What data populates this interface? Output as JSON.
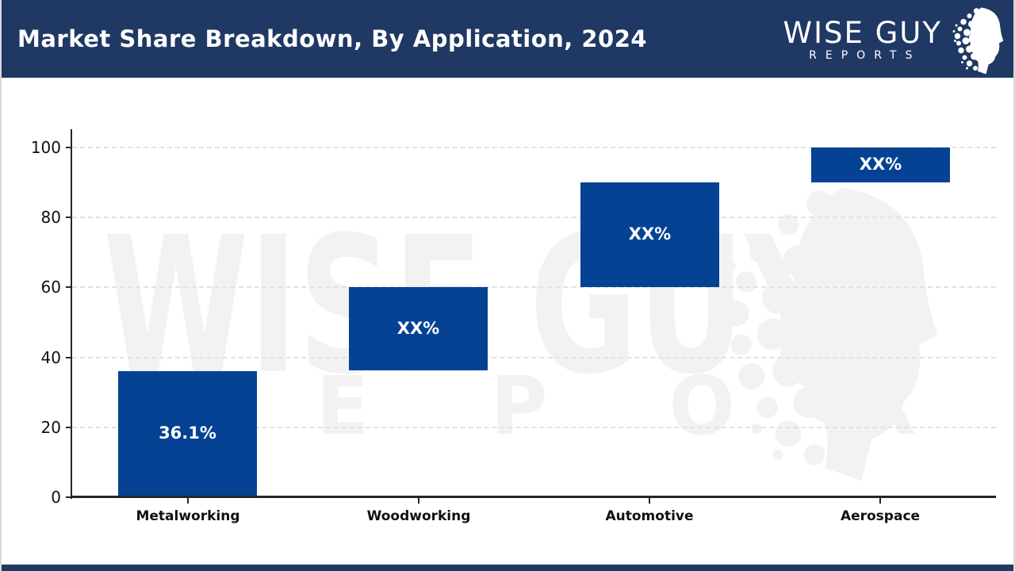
{
  "header": {
    "title": "Market Share Breakdown, By Application, 2024",
    "logo": {
      "line1": "WISE GUY",
      "line2": "REPORTS"
    }
  },
  "watermark": {
    "line1": "WISE GUY",
    "line2": "R E P O R T S"
  },
  "chart_data": {
    "type": "bar",
    "subtype": "waterfall",
    "title": "Market Share Breakdown, By Application, 2024",
    "categories": [
      "Metalworking",
      "Woodworking",
      "Automotive",
      "Aerospace"
    ],
    "segments": [
      {
        "category": "Metalworking",
        "start": 0,
        "end": 36.1,
        "label": "36.1%"
      },
      {
        "category": "Woodworking",
        "start": 36.1,
        "end": 60,
        "label": "XX%"
      },
      {
        "category": "Automotive",
        "start": 60,
        "end": 90,
        "label": "XX%"
      },
      {
        "category": "Aerospace",
        "start": 90,
        "end": 100,
        "label": "XX%"
      }
    ],
    "xlabel": "",
    "ylabel": "",
    "ylim": [
      0,
      100
    ],
    "yticks": [
      "0",
      "20",
      "40",
      "60",
      "80",
      "100"
    ],
    "grid": "horizontal-dashed",
    "legend": "none",
    "colors": {
      "bar": "#054293",
      "value_label": "#ffffff",
      "header_bg": "#203864",
      "axis": "#262626",
      "gridline": "#e2e2e2",
      "watermark": "#f2f2f2"
    }
  }
}
